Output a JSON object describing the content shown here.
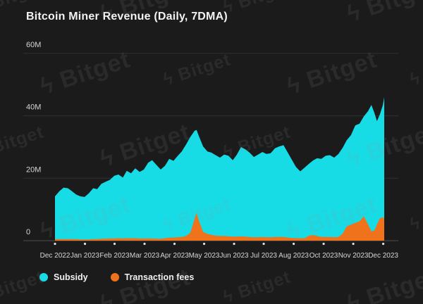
{
  "header": {
    "title": "Bitcoin Miner Revenue (Daily, 7DMA)"
  },
  "watermark": {
    "text": "Bitget",
    "glyph": "ϟ"
  },
  "legend": {
    "items": [
      {
        "label": "Subsidy",
        "color": "#17dce6"
      },
      {
        "label": "Transaction fees",
        "color": "#f0731b"
      }
    ]
  },
  "colors": {
    "background": "#1b1b1b",
    "subsidy": "#17dce6",
    "transaction_fees": "#f0731b",
    "gridline": "#313131",
    "baseline": "#4c4c4c",
    "axis_label": "#d6d6d6",
    "tick_dot": "#e0e0e0",
    "title": "#f2f2f2"
  },
  "chart_data": {
    "type": "area",
    "stacked": true,
    "title": "Bitcoin Miner Revenue (Daily, 7DMA)",
    "unit": "USD (millions) per day",
    "ylim": [
      0,
      64
    ],
    "grid": "horizontal",
    "legend_position": "bottom-left",
    "y_ticks": [
      {
        "label": "0",
        "value": 0
      },
      {
        "label": "20M",
        "value": 20
      },
      {
        "label": "40M",
        "value": 40
      },
      {
        "label": "60M",
        "value": 60
      }
    ],
    "x_ticks": [
      {
        "label": "Dec 2022",
        "t": 0.0
      },
      {
        "label": "Jan 2023",
        "t": 0.091
      },
      {
        "label": "Feb 2023",
        "t": 0.181
      },
      {
        "label": "Mar 2023",
        "t": 0.272
      },
      {
        "label": "Apr 2023",
        "t": 0.363
      },
      {
        "label": "May 2023",
        "t": 0.453
      },
      {
        "label": "Jun 2023",
        "t": 0.544
      },
      {
        "label": "Jul 2023",
        "t": 0.634
      },
      {
        "label": "Aug 2023",
        "t": 0.725
      },
      {
        "label": "Oct 2023",
        "t": 0.816
      },
      {
        "label": "Nov 2023",
        "t": 0.906
      },
      {
        "label": "Dec 2023",
        "t": 0.997
      }
    ],
    "t": [
      0.0,
      0.013,
      0.026,
      0.039,
      0.051,
      0.064,
      0.077,
      0.09,
      0.103,
      0.116,
      0.128,
      0.141,
      0.154,
      0.167,
      0.18,
      0.193,
      0.206,
      0.218,
      0.231,
      0.244,
      0.257,
      0.27,
      0.283,
      0.295,
      0.308,
      0.321,
      0.334,
      0.347,
      0.36,
      0.373,
      0.385,
      0.398,
      0.411,
      0.424,
      0.43,
      0.437,
      0.45,
      0.463,
      0.475,
      0.488,
      0.501,
      0.514,
      0.527,
      0.54,
      0.552,
      0.565,
      0.578,
      0.591,
      0.604,
      0.617,
      0.63,
      0.642,
      0.655,
      0.668,
      0.681,
      0.694,
      0.707,
      0.719,
      0.732,
      0.745,
      0.758,
      0.771,
      0.784,
      0.796,
      0.809,
      0.822,
      0.835,
      0.848,
      0.861,
      0.874,
      0.886,
      0.899,
      0.912,
      0.925,
      0.938,
      0.951,
      0.961,
      0.97,
      0.978,
      0.987,
      0.996,
      1.0
    ],
    "series": [
      {
        "name": "Subsidy",
        "color": "#17dce6",
        "values": [
          13.7,
          15.3,
          16.5,
          16.3,
          15.4,
          14.3,
          13.8,
          13.6,
          14.8,
          16.3,
          16.0,
          17.6,
          18.3,
          18.8,
          20.1,
          20.4,
          19.5,
          21.6,
          20.8,
          22.4,
          21.3,
          22.1,
          24.3,
          25.1,
          23.7,
          22.2,
          23.2,
          25.2,
          24.6,
          26.1,
          27.4,
          29.3,
          30.7,
          28.2,
          26.6,
          27.0,
          27.4,
          26.4,
          26.3,
          25.8,
          25.1,
          26.1,
          25.8,
          24.5,
          26.2,
          28.6,
          28.0,
          27.0,
          25.7,
          26.5,
          27.2,
          26.7,
          26.9,
          28.4,
          29.0,
          29.4,
          27.2,
          25.1,
          22.8,
          21.4,
          22.6,
          23.0,
          23.9,
          24.9,
          25.0,
          26.0,
          26.2,
          25.5,
          26.6,
          27.5,
          27.6,
          28.7,
          31.2,
          31.3,
          32.0,
          36.3,
          40.5,
          37.8,
          33.1,
          33.3,
          36.0,
          39.0
        ]
      },
      {
        "name": "Transaction fees",
        "color": "#f0731b",
        "values": [
          0.5,
          0.5,
          0.5,
          0.5,
          0.5,
          0.5,
          0.4,
          0.4,
          0.4,
          0.5,
          0.5,
          0.6,
          0.6,
          0.7,
          0.7,
          0.8,
          0.7,
          0.8,
          0.8,
          0.8,
          0.7,
          0.7,
          0.7,
          0.7,
          0.6,
          0.6,
          0.8,
          1.0,
          1.0,
          1.1,
          1.2,
          1.5,
          2.5,
          7.0,
          8.9,
          6.5,
          2.8,
          2.2,
          1.9,
          1.6,
          1.5,
          1.5,
          1.4,
          1.3,
          1.3,
          1.4,
          1.3,
          1.2,
          1.1,
          1.1,
          1.2,
          1.1,
          1.1,
          1.2,
          1.2,
          1.2,
          1.0,
          0.9,
          0.8,
          0.8,
          0.8,
          1.6,
          1.8,
          1.5,
          1.2,
          1.2,
          1.2,
          1.1,
          1.2,
          2.3,
          4.6,
          5.1,
          5.7,
          6.2,
          7.8,
          5.2,
          3.0,
          3.2,
          5.2,
          7.2,
          7.5,
          7.0
        ]
      }
    ]
  }
}
